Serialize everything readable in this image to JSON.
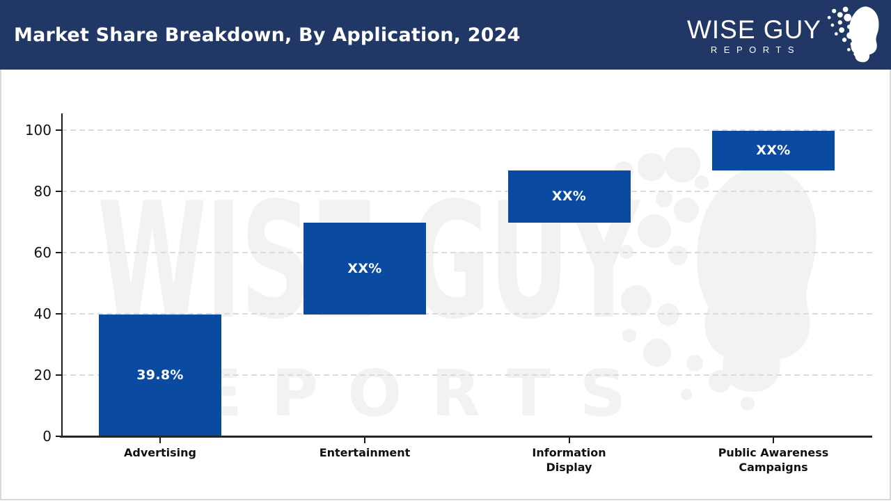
{
  "header": {
    "title": "Market Share Breakdown, By Application, 2024",
    "bg_color": "#213765",
    "logo": {
      "line1": "WISE GUY",
      "line2": "REPORTS"
    }
  },
  "watermark": {
    "line1": "WISE GUY",
    "line2": "REPORTS",
    "color": "#f2f2f2"
  },
  "chart_data": {
    "type": "bar",
    "variant": "waterfall",
    "title": "Market Share Breakdown, By Application, 2024",
    "categories": [
      {
        "lines": [
          "Advertising"
        ]
      },
      {
        "lines": [
          "Entertainment"
        ]
      },
      {
        "lines": [
          "Information",
          "Display"
        ]
      },
      {
        "lines": [
          "Public Awareness",
          "Campaigns"
        ]
      }
    ],
    "segments": [
      {
        "label": "39.8%",
        "start": 0,
        "end": 39.8
      },
      {
        "label": "XX%",
        "start": 39.8,
        "end": 69.7
      },
      {
        "label": "XX%",
        "start": 69.7,
        "end": 86.9
      },
      {
        "label": "XX%",
        "start": 86.9,
        "end": 99.8
      }
    ],
    "yticks": [
      0,
      20,
      40,
      60,
      80,
      100
    ],
    "ylim": [
      0,
      105
    ],
    "xlabel": "",
    "ylabel": "",
    "legend": "none",
    "grid": "horizontal-dashed",
    "bar_color": "#0b4aa1",
    "gridline_color": "#dbdbdb",
    "axis_color": "#1a1a1a"
  }
}
